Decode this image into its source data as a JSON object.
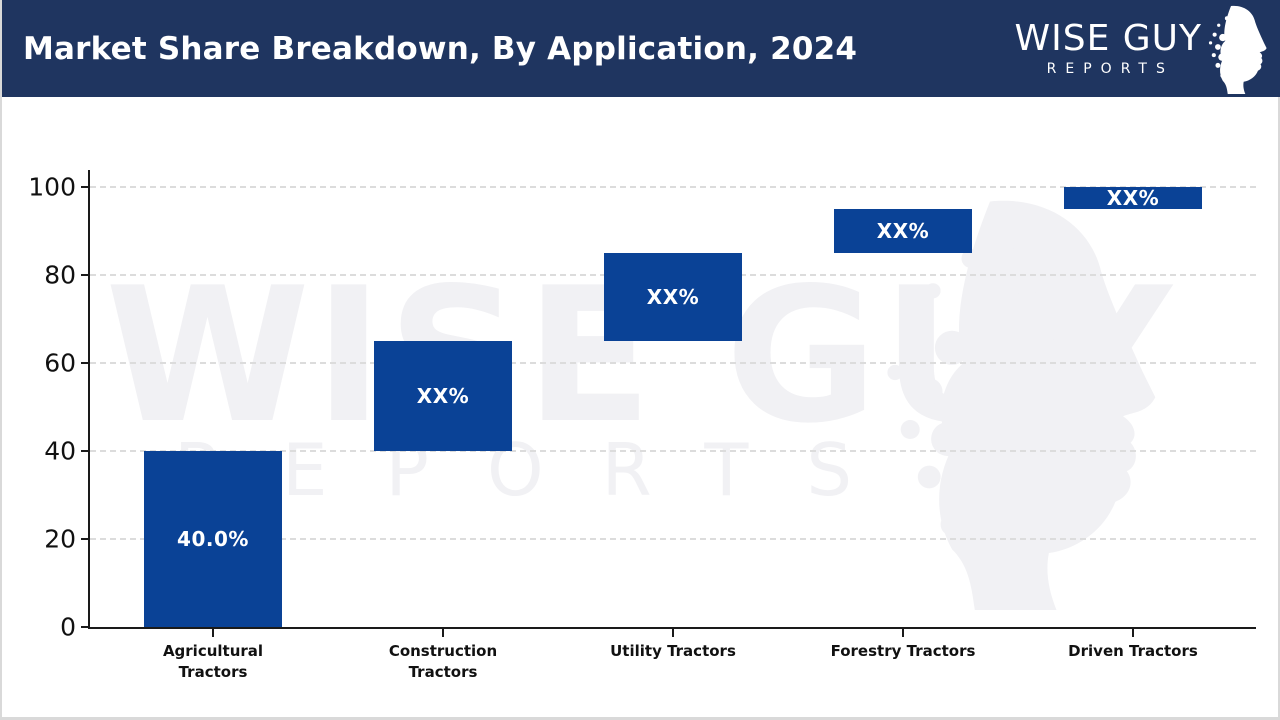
{
  "header": {
    "title": "Market Share Breakdown, By Application, 2024",
    "logo": {
      "brand": "WISE GUY",
      "sub": "REPORTS"
    }
  },
  "watermark": {
    "line1": "WISE GUY",
    "line2": "REPORTS"
  },
  "colors": {
    "header_bg": "#1f3560",
    "bar": "#0a4296",
    "bar_label": "#ffffff",
    "watermark": "#f1f1f4",
    "grid": "#dcdcdc",
    "axis": "#1a1a1a"
  },
  "chart_data": {
    "type": "bar",
    "subtype": "floating-waterfall",
    "title": "Market Share Breakdown, By Application, 2024",
    "categories": [
      "Agricultural Tractors",
      "Construction Tractors",
      "Utility Tractors",
      "Forestry Tractors",
      "Driven Tractors"
    ],
    "category_label_lines": [
      [
        "Agricultural",
        "Tractors"
      ],
      [
        "Construction",
        "Tractors"
      ],
      [
        "Utility Tractors"
      ],
      [
        "Forestry Tractors"
      ],
      [
        "Driven Tractors"
      ]
    ],
    "bars": [
      {
        "category": "Agricultural Tractors",
        "start": 0,
        "end": 40,
        "value": 40,
        "label": "40.0%"
      },
      {
        "category": "Construction Tractors",
        "start": 40,
        "end": 65,
        "value": 25,
        "label": "XX%"
      },
      {
        "category": "Utility Tractors",
        "start": 65,
        "end": 85,
        "value": 20,
        "label": "XX%"
      },
      {
        "category": "Forestry Tractors",
        "start": 85,
        "end": 95,
        "value": 10,
        "label": "XX%"
      },
      {
        "category": "Driven Tractors",
        "start": 95,
        "end": 100,
        "value": 5,
        "label": "XX%"
      }
    ],
    "xlabel": "",
    "ylabel": "",
    "ylim": [
      0,
      100
    ],
    "yticks": [
      0,
      20,
      40,
      60,
      80,
      100
    ],
    "grid": "horizontal-dashed",
    "legend": false
  }
}
